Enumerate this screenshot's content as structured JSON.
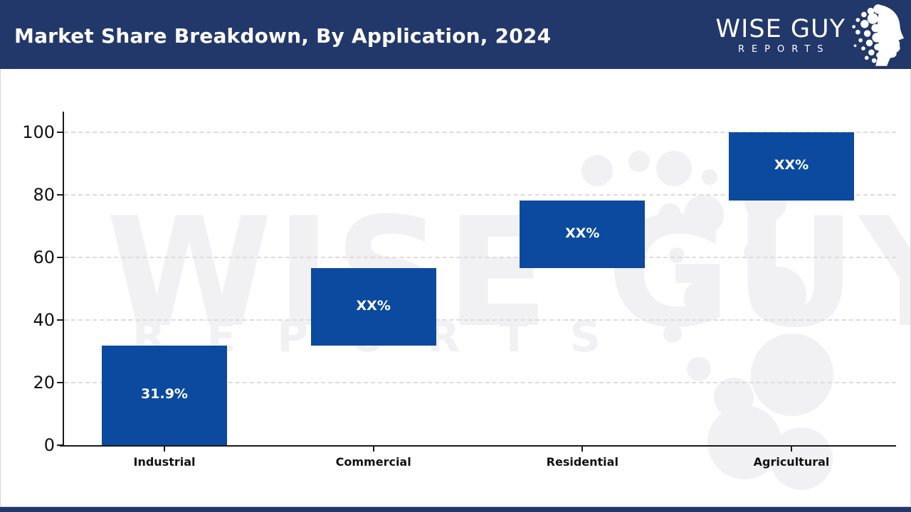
{
  "header": {
    "title": "Market Share Breakdown, By Application, 2024",
    "logo": {
      "brand_top": "WISE GUY",
      "brand_bottom": "REPORTS"
    }
  },
  "watermark": {
    "big_text": "WISE GUY",
    "small_text": "REPORTS"
  },
  "chart_data": {
    "type": "bar",
    "subtype": "waterfall",
    "title": "Market Share Breakdown, By Application, 2024",
    "categories": [
      "Industrial",
      "Commercial",
      "Residential",
      "Agricultural"
    ],
    "series": [
      {
        "name": "Market Share",
        "segments": [
          {
            "category": "Industrial",
            "start": 0,
            "end": 31.9,
            "label": "31.9%"
          },
          {
            "category": "Commercial",
            "start": 31.9,
            "end": 56.5,
            "label": "XX%"
          },
          {
            "category": "Residential",
            "start": 56.5,
            "end": 78.2,
            "label": "XX%"
          },
          {
            "category": "Agricultural",
            "start": 78.2,
            "end": 100,
            "label": "XX%"
          }
        ]
      }
    ],
    "xlabel": "",
    "ylabel": "",
    "ylim": [
      0,
      107
    ],
    "yticks": [
      0,
      20,
      40,
      60,
      80,
      100
    ],
    "grid": true,
    "grid_style": "dashed",
    "legend": false
  },
  "colors": {
    "header_bg": "#22386a",
    "footer_bg": "#22386a",
    "bar": "#0b4a9e",
    "bar_label": "#ffffff",
    "grid": "#dcdcdc",
    "axis": "#1a1a1a",
    "tick_text": "#111111",
    "watermark": "#f1f1f3",
    "panel_border": "#d6d6d6"
  }
}
